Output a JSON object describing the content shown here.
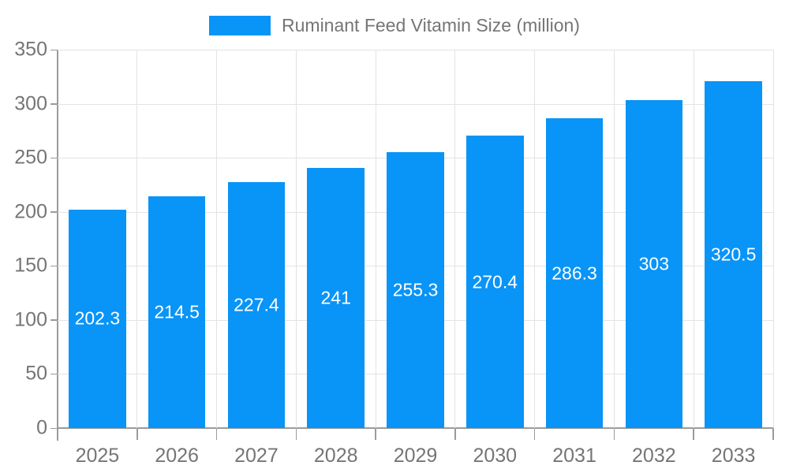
{
  "legend": {
    "label": "Ruminant Feed Vitamin Size (million)"
  },
  "chart_data": {
    "type": "bar",
    "title": "Ruminant Feed Vitamin Size (million)",
    "categories": [
      "2025",
      "2026",
      "2027",
      "2028",
      "2029",
      "2030",
      "2031",
      "2032",
      "2033"
    ],
    "values": [
      202.3,
      214.5,
      227.4,
      241,
      255.3,
      270.4,
      286.3,
      303,
      320.5
    ],
    "value_labels": [
      "202.3",
      "214.5",
      "227.4",
      "241",
      "255.3",
      "270.4",
      "286.3",
      "303",
      "320.5"
    ],
    "xlabel": "",
    "ylabel": "",
    "ylim": [
      0,
      350
    ],
    "yticks": [
      0,
      50,
      100,
      150,
      200,
      250,
      300,
      350
    ],
    "grid": true,
    "legend_position": "top",
    "colors": {
      "bar": "#0994f7",
      "grid": "#e3e3e3",
      "axis": "#9b9b9b",
      "tick_text": "#757575",
      "bar_label_text": "#ffffff"
    }
  }
}
